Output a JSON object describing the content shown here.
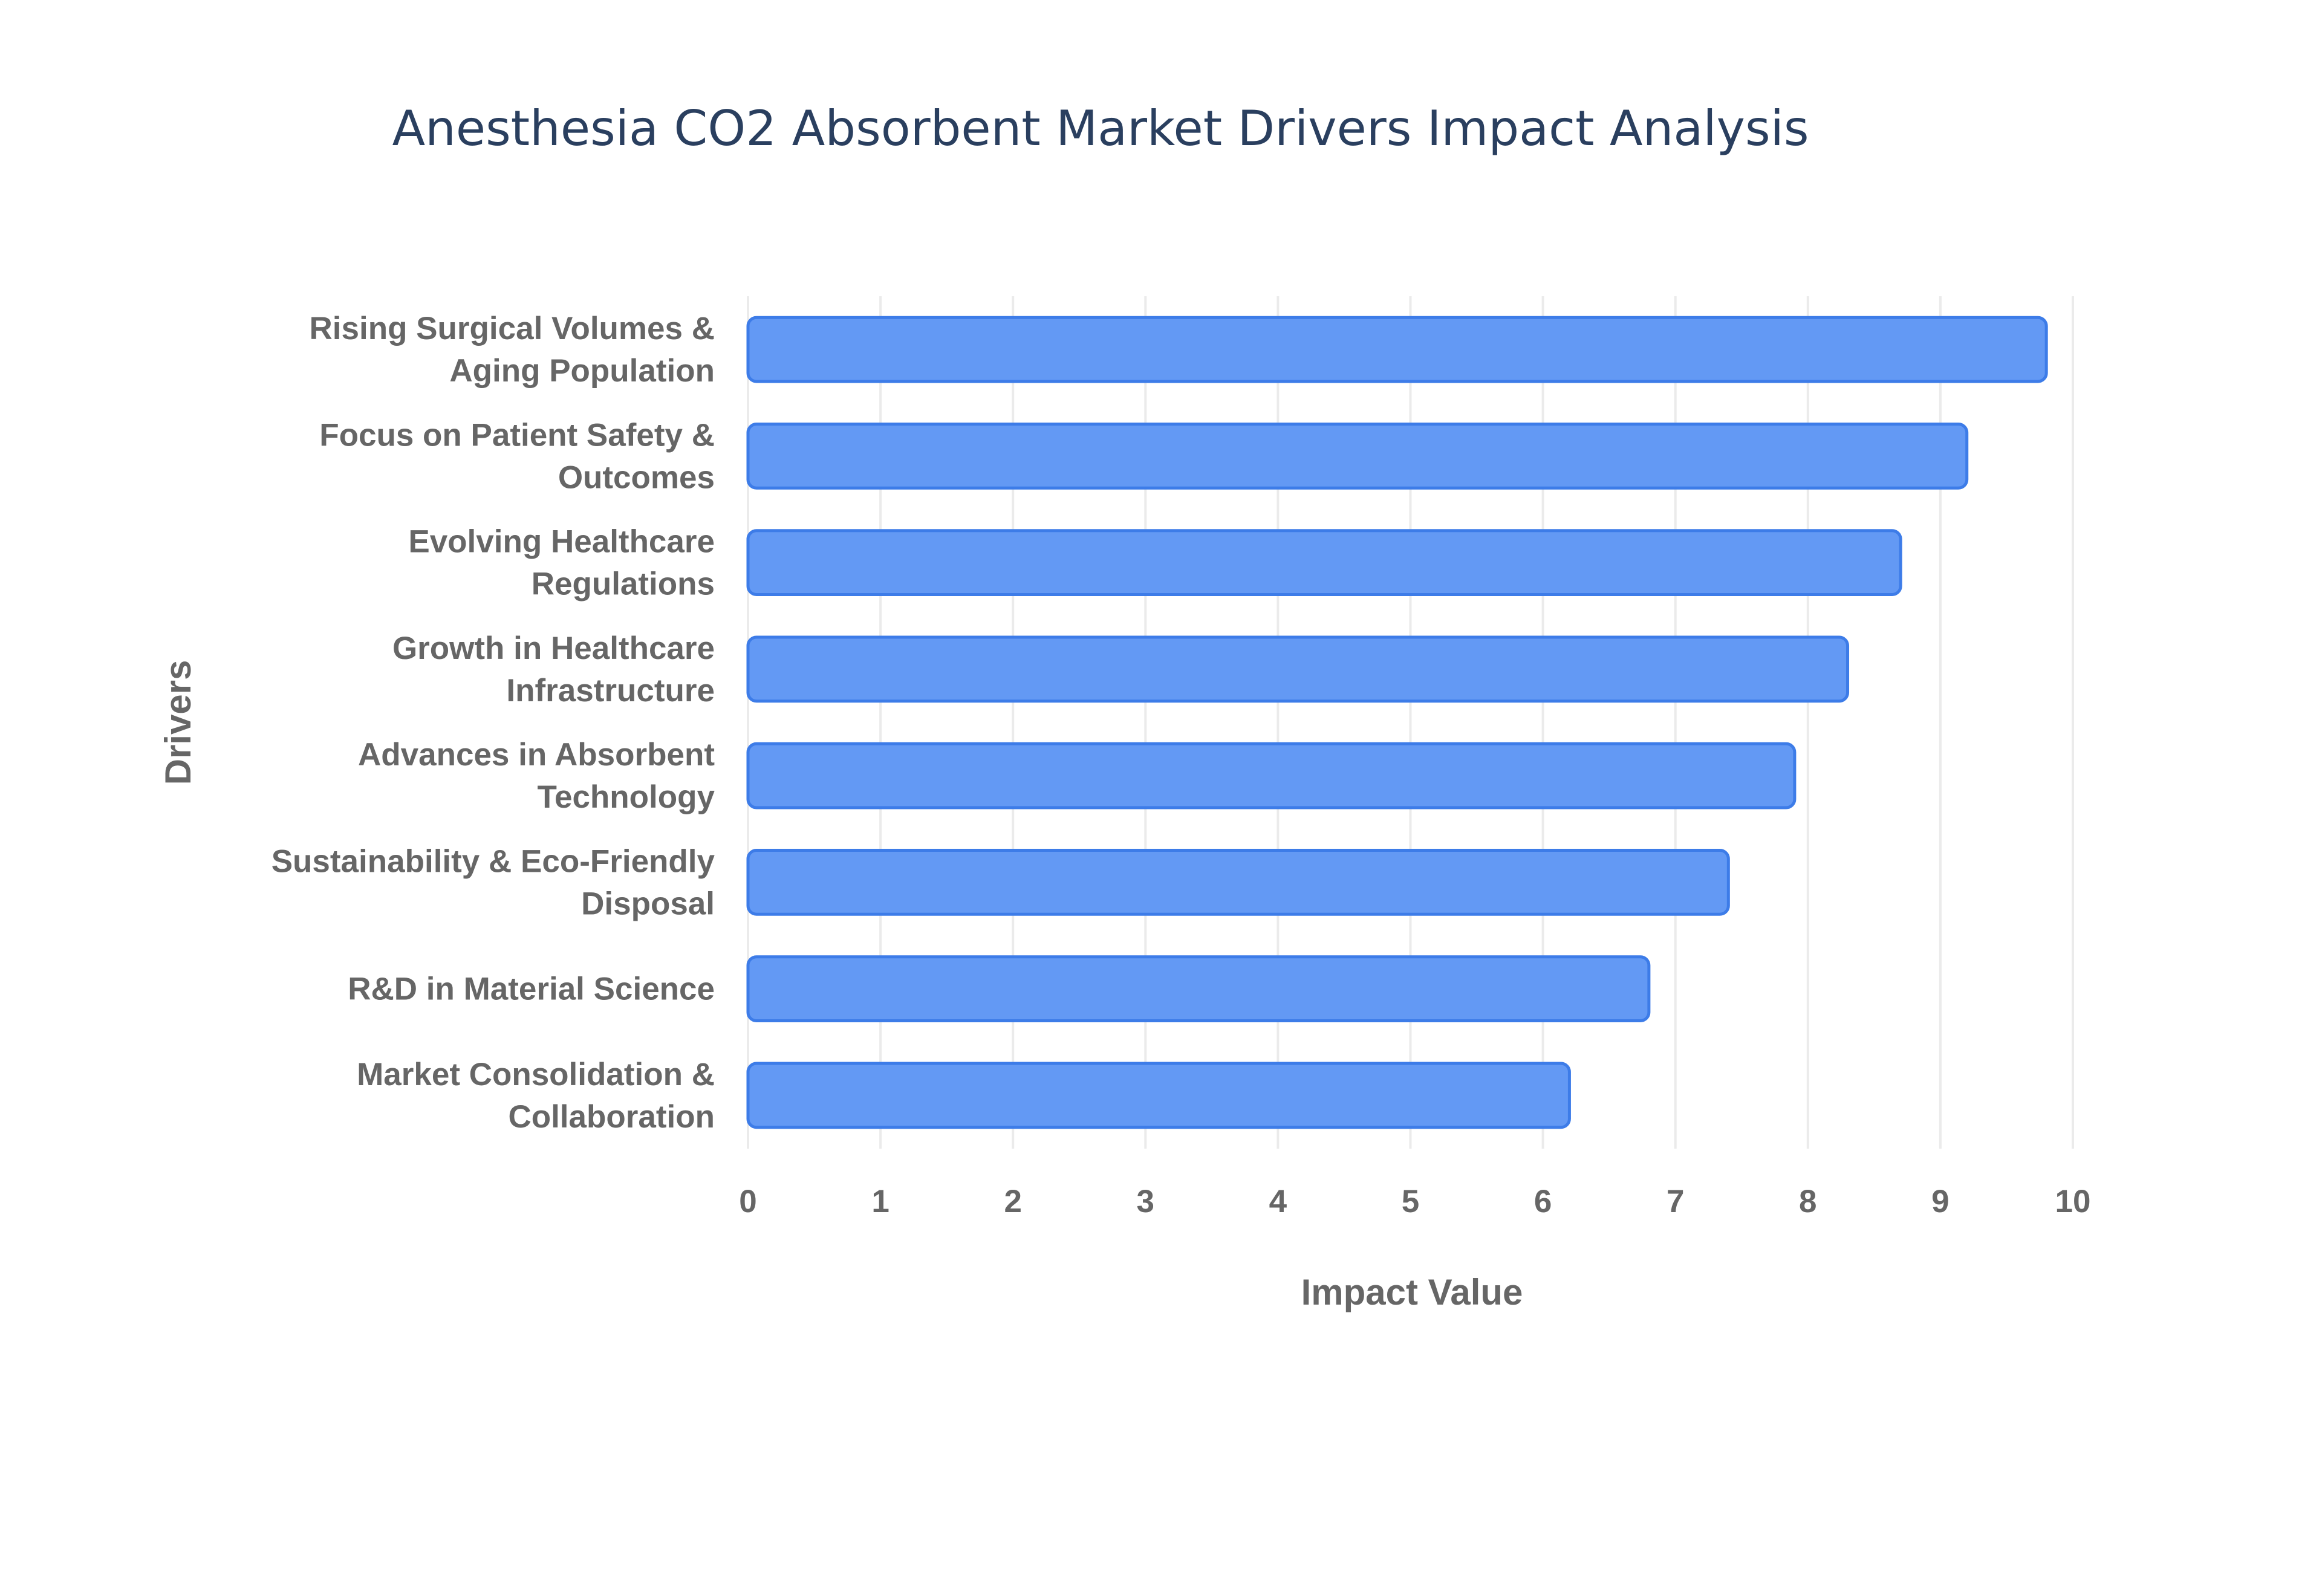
{
  "chart_data": {
    "type": "bar",
    "orientation": "horizontal",
    "title": "Anesthesia CO2 Absorbent Market Drivers Impact Analysis",
    "xlabel": "Impact Value",
    "ylabel": "Drivers",
    "xlim": [
      0,
      10
    ],
    "x_ticks": [
      "0",
      "1",
      "2",
      "3",
      "4",
      "5",
      "6",
      "7",
      "8",
      "9",
      "10"
    ],
    "grid": true,
    "categories": [
      [
        "Rising Surgical Volumes &",
        "Aging Population"
      ],
      [
        "Focus on Patient Safety &",
        "Outcomes"
      ],
      [
        "Evolving Healthcare",
        "Regulations"
      ],
      [
        "Growth in Healthcare",
        "Infrastructure"
      ],
      [
        "Advances in Absorbent",
        "Technology"
      ],
      [
        "Sustainability & Eco-Friendly",
        "Disposal"
      ],
      [
        "R&D in Material Science"
      ],
      [
        "Market Consolidation &",
        "Collaboration"
      ]
    ],
    "values": [
      9.8,
      9.2,
      8.7,
      8.3,
      7.9,
      7.4,
      6.8,
      6.2
    ],
    "colors": {
      "bar_fill": "#6399f4",
      "bar_stroke": "#3d7ce8",
      "title": "#2a3f5f",
      "labels": "#666666",
      "grid": "#ebebeb"
    }
  }
}
